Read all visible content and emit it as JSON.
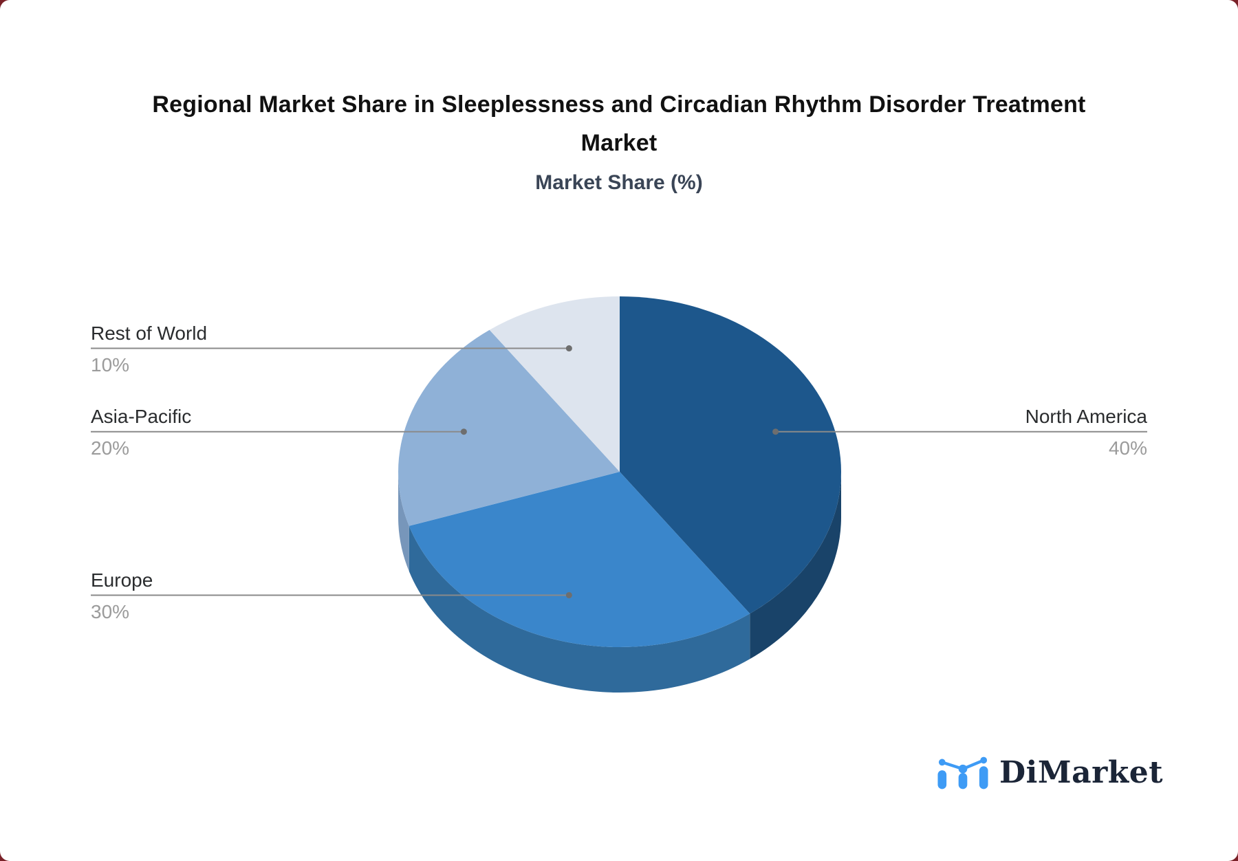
{
  "header": {
    "title": "Regional Market Share in Sleeplessness and Circadian Rhythm Disorder Treatment Market",
    "subtitle": "Market Share (%)"
  },
  "chart_data": {
    "type": "pie",
    "title": "Regional Market Share in Sleeplessness and Circadian Rhythm Disorder Treatment Market",
    "subtitle": "Market Share (%)",
    "unit": "%",
    "effect_3d": true,
    "start_angle_deg": 90,
    "direction": "clockwise",
    "legend_position": "callouts",
    "slices": [
      {
        "label": "North America",
        "value": 40,
        "display": "40%",
        "color": "#1d578c",
        "side_color": "#194369"
      },
      {
        "label": "Europe",
        "value": 30,
        "display": "30%",
        "color": "#3a86cb",
        "side_color": "#2f6a9b"
      },
      {
        "label": "Asia-Pacific",
        "value": 20,
        "display": "20%",
        "color": "#8fb1d7",
        "side_color": "#7796ba"
      },
      {
        "label": "Rest of World",
        "value": 10,
        "display": "10%",
        "color": "#dde4ee",
        "side_color": "#b9c4d4"
      }
    ]
  },
  "branding": {
    "name": "DiMarket",
    "icon": "bar-line-chart-icon",
    "icon_color": "#3e9bf5",
    "text_color": "#1b2537"
  },
  "colors": {
    "title": "#111111",
    "subtitle": "#3a4556",
    "label": "#2a2c2e",
    "value": "#9b9b9b",
    "connector": "#8a8a8a",
    "dot": "#6e6e6e"
  }
}
